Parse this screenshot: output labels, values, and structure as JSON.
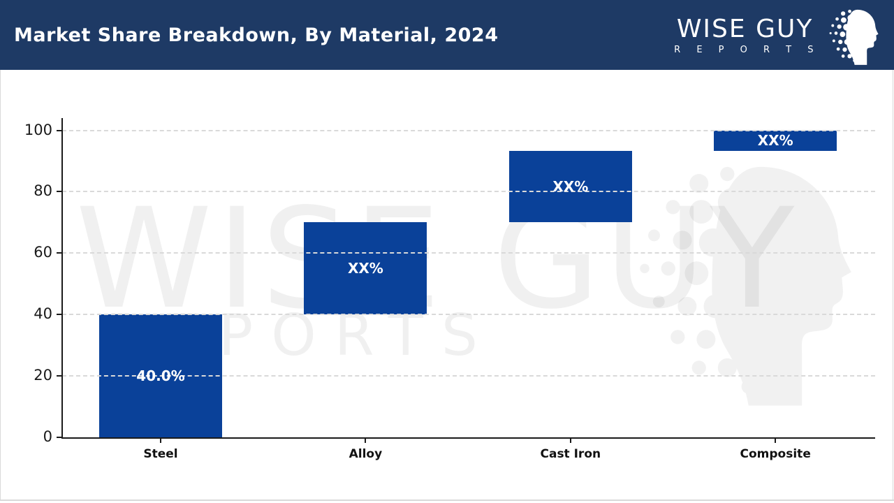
{
  "header": {
    "title": "Market Share Breakdown, By Material, 2024",
    "background": "#1e3a65"
  },
  "logo": {
    "main": "WISE GUY",
    "sub": "R E P O R T S"
  },
  "watermark": {
    "line1": "WISE GUY",
    "line2": "REPORTS"
  },
  "chart_data": {
    "type": "bar",
    "subtype": "waterfall",
    "title": "Market Share Breakdown, By Material, 2024",
    "categories": [
      "Steel",
      "Alloy",
      "Cast Iron",
      "Composite"
    ],
    "bars": [
      {
        "category": "Steel",
        "label": "40.0%",
        "start": 0,
        "end": 40,
        "value": 40.0
      },
      {
        "category": "Alloy",
        "label": "XX%",
        "start": 40,
        "end": 70,
        "value": null
      },
      {
        "category": "Cast Iron",
        "label": "XX%",
        "start": 70,
        "end": 93.3,
        "value": null
      },
      {
        "category": "Composite",
        "label": "XX%",
        "start": 93.3,
        "end": 100,
        "value": null
      }
    ],
    "yticks": [
      0,
      20,
      40,
      60,
      80,
      100
    ],
    "ylim": [
      0,
      104
    ],
    "xlabel": "",
    "ylabel": "",
    "grid": "horizontal-dashed",
    "legend": "none",
    "bar_color": "#0a4199",
    "grid_color": "#d9d9d9",
    "axis_color": "#1a1a1a",
    "bar_label_color": "#ffffff"
  }
}
